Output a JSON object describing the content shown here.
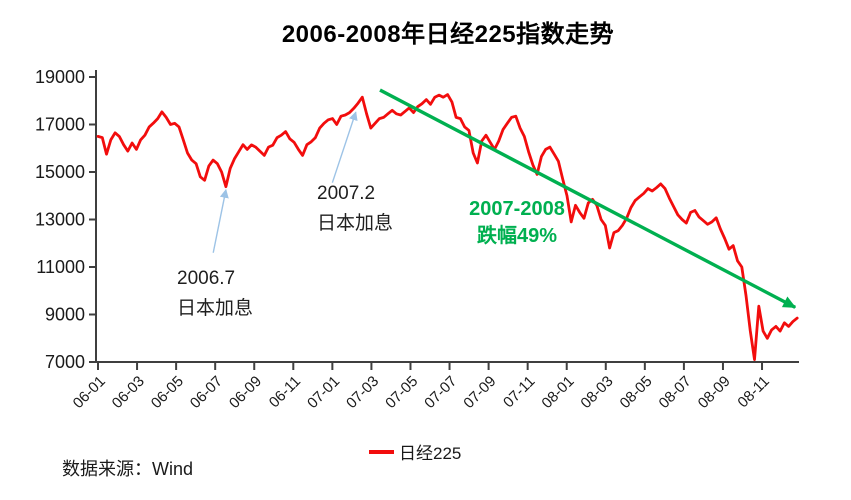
{
  "title": "2006-2008年日经225指数走势",
  "source_note": "数据来源：Wind",
  "legend": {
    "label": "日经225"
  },
  "annotations": {
    "rate_hike_2006": {
      "line1": "2006.7",
      "line2": "日本加息",
      "arrow": {
        "from_month": 5.9,
        "from_value": 11600,
        "to_month": 6.55,
        "to_value": 14250
      }
    },
    "rate_hike_2007": {
      "line1": "2007.2",
      "line2": "日本加息",
      "arrow": {
        "from_month": 12.0,
        "from_value": 14550,
        "to_month": 13.2,
        "to_value": 17520
      }
    },
    "decline_label": {
      "line1": "2007-2008",
      "line2": "跌幅49%"
    }
  },
  "colors": {
    "series_red": "#F20D0D",
    "trend_green": "#00B050",
    "annotation_arrow_blue": "#9DC3E6",
    "axis": "#3F3F3F",
    "tick_text": "#1a1a1a"
  },
  "chart_data": {
    "type": "line",
    "title": "2006-2008年日经225指数走势",
    "xlabel": "",
    "ylabel": "",
    "grid": false,
    "legend_position": "bottom",
    "ylim": [
      7000,
      19000
    ],
    "y_ticks": [
      7000,
      9000,
      11000,
      13000,
      15000,
      17000,
      19000
    ],
    "x_tick_labels": [
      "06-01",
      "06-03",
      "06-05",
      "06-07",
      "06-09",
      "06-11",
      "07-01",
      "07-03",
      "07-05",
      "07-07",
      "07-09",
      "07-11",
      "08-01",
      "08-03",
      "08-05",
      "08-07",
      "08-09",
      "08-11"
    ],
    "x_months_start": 0,
    "x_months_end": 35.8,
    "series": [
      {
        "name": "日经225",
        "color": "#F20D0D",
        "cadence": "weekly",
        "values": [
          16500,
          16450,
          15750,
          16350,
          16650,
          16500,
          16150,
          15880,
          16220,
          15950,
          16350,
          16550,
          16900,
          17060,
          17250,
          17530,
          17300,
          17000,
          17050,
          16900,
          16350,
          15800,
          15500,
          15350,
          14800,
          14650,
          15250,
          15500,
          15350,
          15000,
          14380,
          15150,
          15550,
          15850,
          16150,
          15950,
          16140,
          16050,
          15870,
          15700,
          16050,
          16130,
          16450,
          16550,
          16700,
          16400,
          16250,
          15950,
          15700,
          16150,
          16270,
          16450,
          16850,
          17050,
          17200,
          17250,
          17000,
          17350,
          17400,
          17500,
          17680,
          17900,
          18150,
          17450,
          16850,
          17050,
          17250,
          17300,
          17450,
          17600,
          17450,
          17400,
          17550,
          17700,
          17500,
          17750,
          17875,
          18050,
          17850,
          18150,
          18240,
          18150,
          18260,
          17950,
          17300,
          17250,
          16900,
          16750,
          15800,
          15380,
          16300,
          16550,
          16250,
          15950,
          16300,
          16785,
          17050,
          17300,
          17350,
          16850,
          16500,
          15850,
          15300,
          14900,
          15650,
          15950,
          16050,
          15750,
          15450,
          14700,
          14000,
          12900,
          13600,
          13300,
          13050,
          13700,
          13850,
          13600,
          13000,
          12750,
          11800,
          12450,
          12530,
          12750,
          13050,
          13500,
          13800,
          13950,
          14100,
          14300,
          14200,
          14340,
          14500,
          14300,
          13900,
          13550,
          13200,
          13000,
          12850,
          13300,
          13380,
          13100,
          12950,
          12800,
          12900,
          13070,
          12600,
          12200,
          11750,
          11900,
          11260,
          11000,
          9800,
          8300,
          7100,
          9350,
          8300,
          8000,
          8350,
          8500,
          8300,
          8650,
          8500,
          8700,
          8850
        ]
      }
    ],
    "trend_line": {
      "label": "2007-2008 跌幅49%",
      "color": "#00B050",
      "from_month": 14.44,
      "from_value": 18450,
      "to_month": 35.7,
      "to_value": 9300
    }
  }
}
